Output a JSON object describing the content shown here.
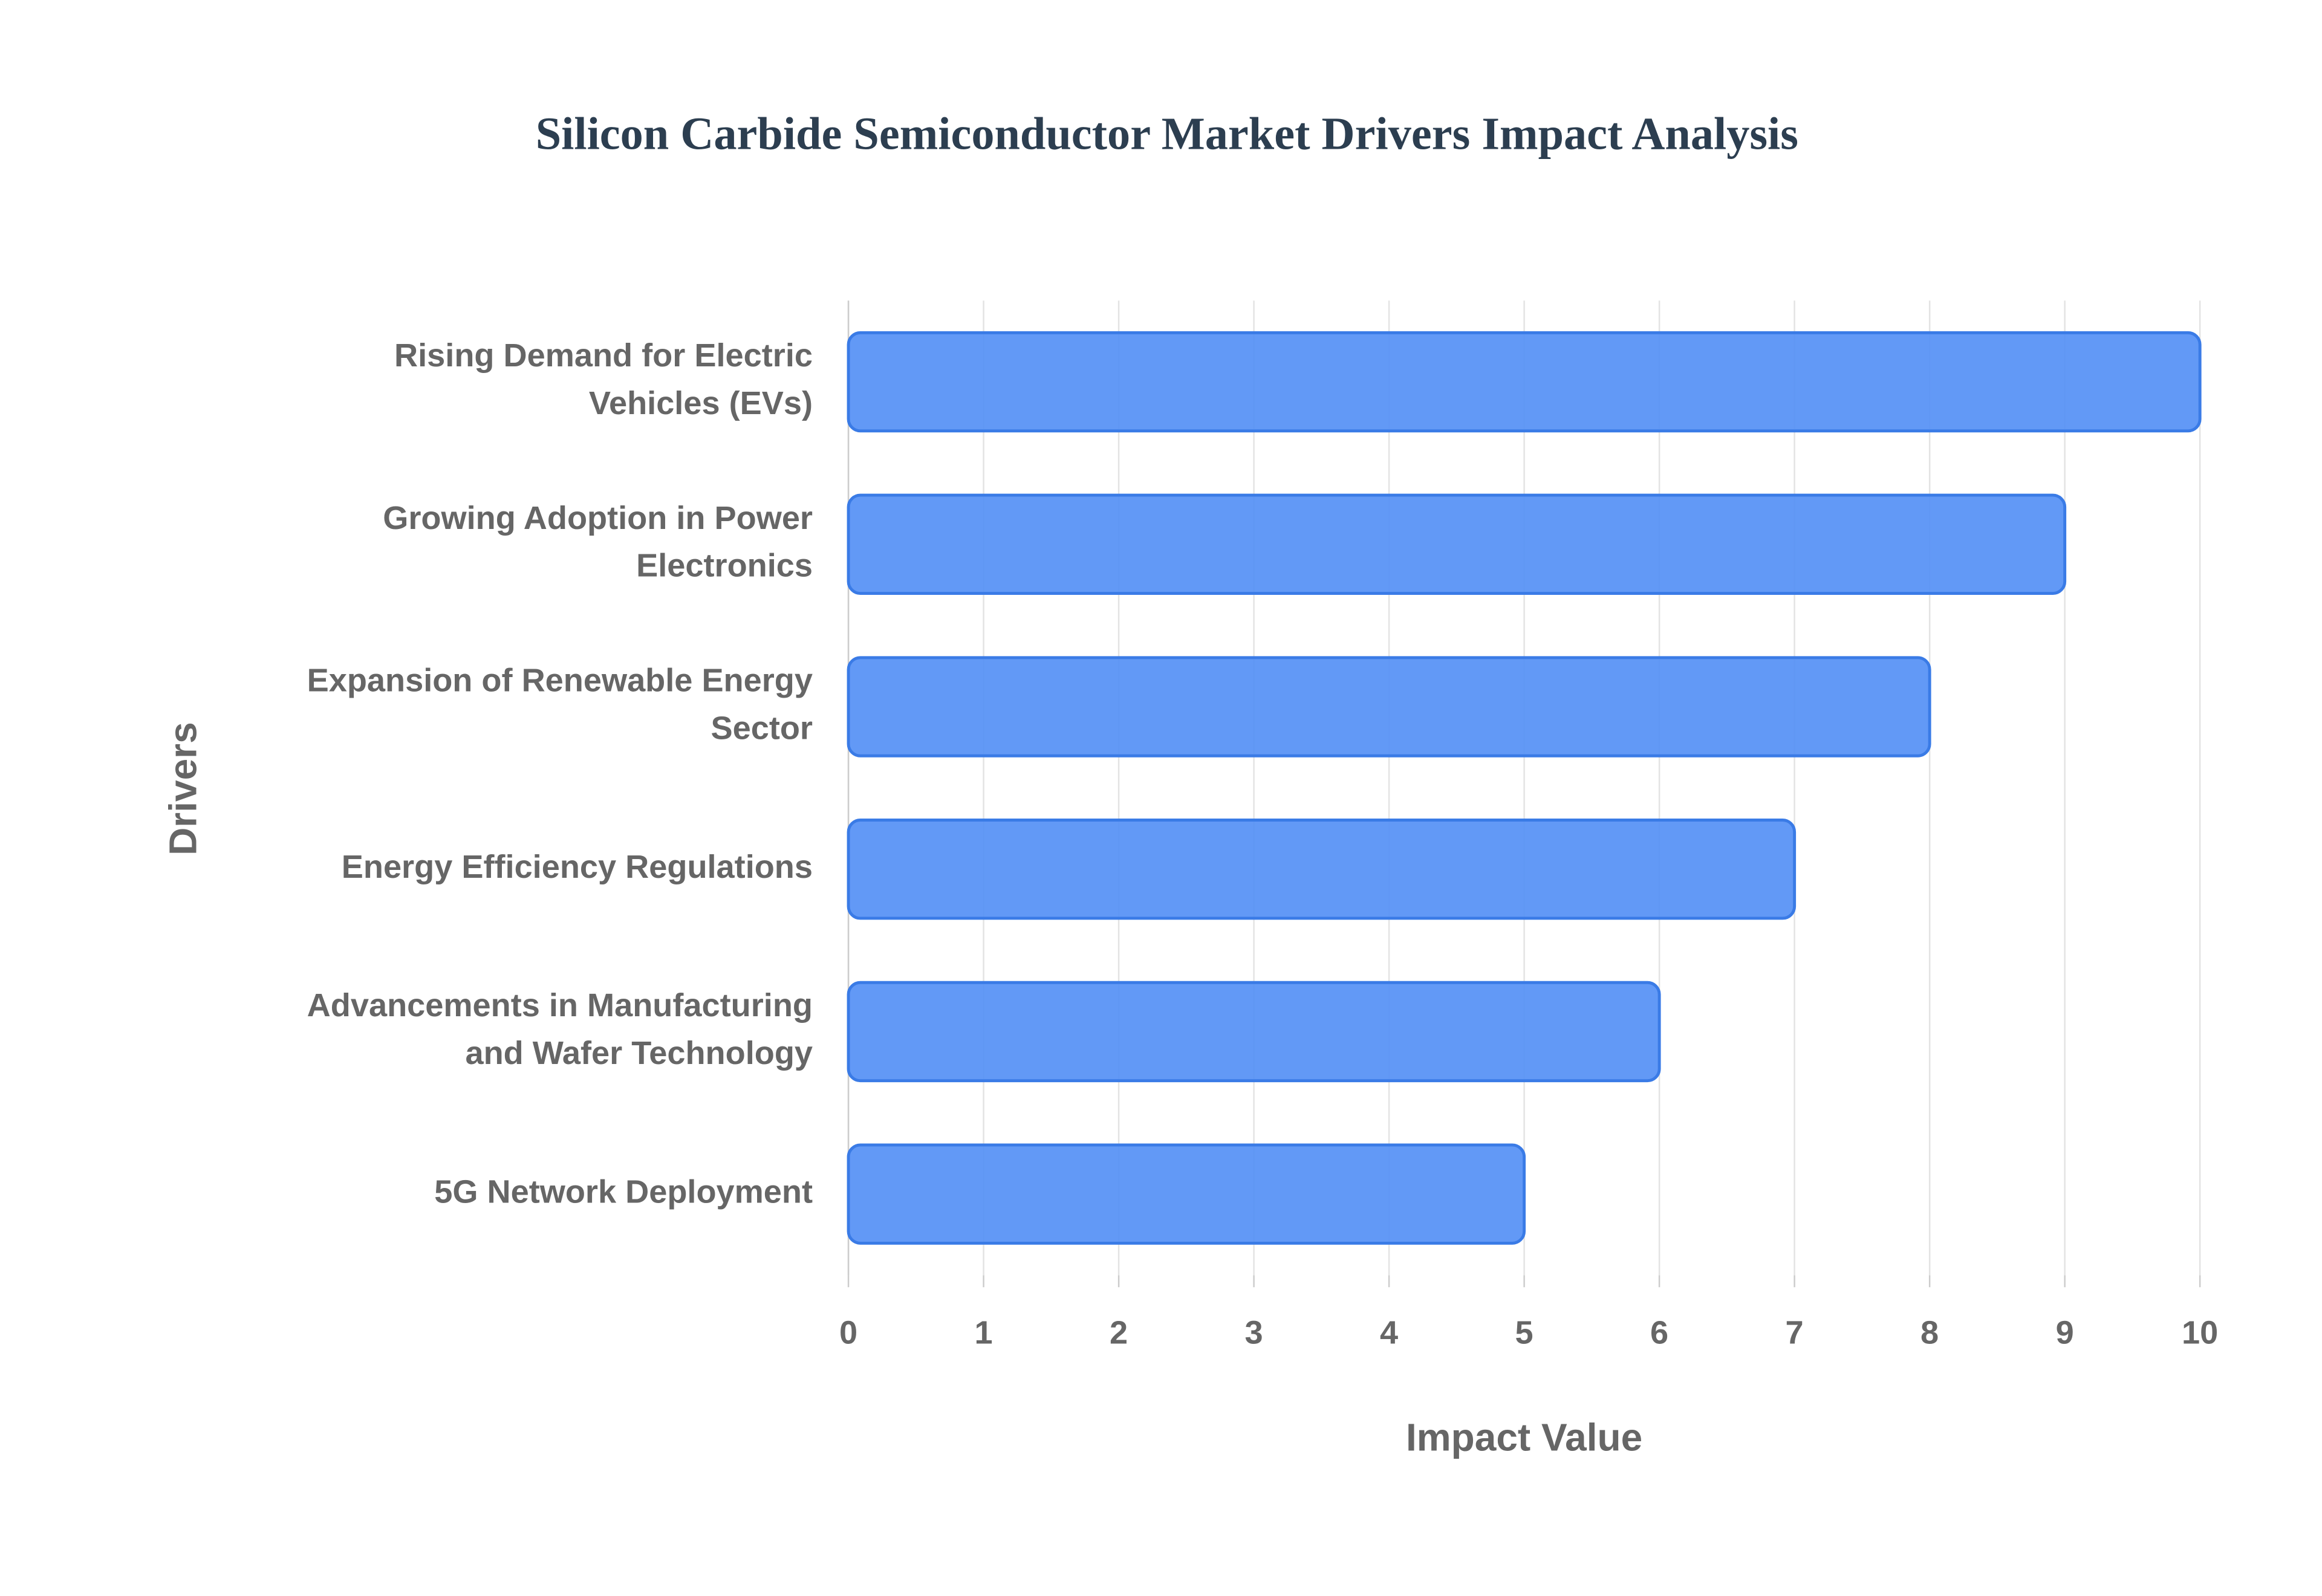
{
  "chart_data": {
    "type": "bar",
    "orientation": "horizontal",
    "title": "Silicon Carbide Semiconductor Market Drivers Impact Analysis",
    "x_label": "Impact Value",
    "y_label": "Drivers",
    "categories": [
      "Rising Demand for Electric Vehicles (EVs)",
      "Growing Adoption in Power Electronics",
      "Expansion of Renewable Energy Sector",
      "Energy Efficiency Regulations",
      "Advancements in Manufacturing and Wafer Technology",
      "5G Network Deployment"
    ],
    "values": [
      10,
      9,
      8,
      7,
      6,
      5
    ],
    "color": "#5590f5",
    "xlim": [
      0,
      10
    ],
    "xticks": [
      0,
      1,
      2,
      3,
      4,
      5,
      6,
      7,
      8,
      9,
      10
    ],
    "grid": true
  }
}
